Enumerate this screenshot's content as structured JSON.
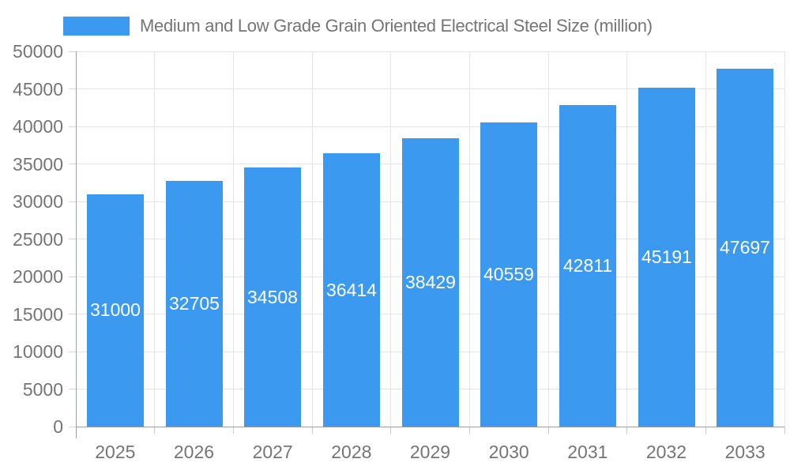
{
  "legend": {
    "label": "Medium and Low Grade Grain Oriented Electrical Steel Size (million)"
  },
  "chart_data": {
    "type": "bar",
    "title": "Medium and Low Grade Grain Oriented Electrical Steel Size (million)",
    "categories": [
      "2025",
      "2026",
      "2027",
      "2028",
      "2029",
      "2030",
      "2031",
      "2032",
      "2033"
    ],
    "values": [
      31000,
      32705,
      34508,
      36414,
      38429,
      40559,
      42811,
      45191,
      47697
    ],
    "value_labels": [
      "31000",
      "32705",
      "34508",
      "36414",
      "38429",
      "40559",
      "42811",
      "45191",
      "47697"
    ],
    "xlabel": "",
    "ylabel": "",
    "ylim": [
      0,
      50000
    ],
    "y_tick_step": 5000,
    "y_tick_labels": [
      "0",
      "5000",
      "10000",
      "15000",
      "20000",
      "25000",
      "30000",
      "35000",
      "40000",
      "45000",
      "50000"
    ],
    "grid": true,
    "legend_position": "top-left",
    "bar_color": "#3b99ef",
    "value_label_color": "#ffffff",
    "axis_color": "#9e9e9e",
    "grid_color": "#e4e4e4",
    "tick_color": "#cccccc",
    "text_color": "#757575"
  }
}
